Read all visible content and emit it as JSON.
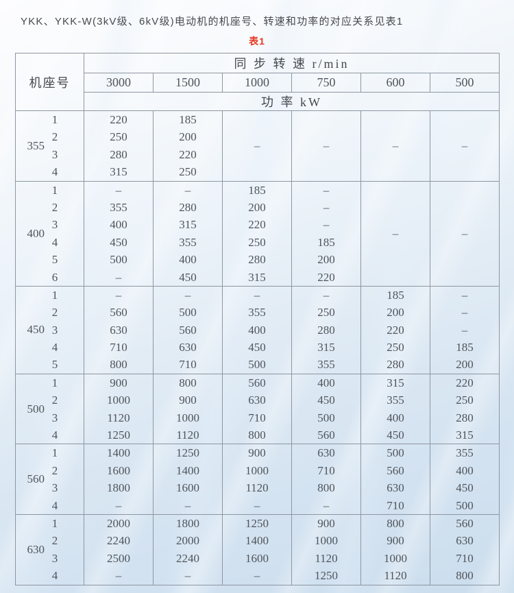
{
  "page": {
    "title": "YKK、YKK-W(3kV级、6kV级)电动机的机座号、转速和功率的对应关系见表1",
    "caption": "表1"
  },
  "colors": {
    "caption_red": "#e6371e",
    "border_gray": "#8d96a0",
    "background_blue": "#cbdded"
  },
  "table": {
    "frame_col_header": "机座号",
    "speed_title": "同 步 转 速 r/min",
    "power_title": "功  率 kW",
    "speeds": [
      "3000",
      "1500",
      "1000",
      "750",
      "600",
      "500"
    ],
    "dash": "–",
    "blocks": [
      {
        "frame": "355",
        "subs": [
          "1",
          "2",
          "3",
          "4"
        ],
        "columns": [
          {
            "type": "rows",
            "values": [
              "220",
              "250",
              "280",
              "315"
            ]
          },
          {
            "type": "rows",
            "values": [
              "185",
              "200",
              "220",
              "250"
            ]
          },
          {
            "type": "merged",
            "value": "–"
          },
          {
            "type": "merged",
            "value": "–"
          },
          {
            "type": "merged",
            "value": "–"
          },
          {
            "type": "merged",
            "value": "–"
          }
        ]
      },
      {
        "frame": "400",
        "subs": [
          "1",
          "2",
          "3",
          "4",
          "5",
          "6"
        ],
        "columns": [
          {
            "type": "rows",
            "values": [
              "–",
              "355",
              "400",
              "450",
              "500",
              "–"
            ]
          },
          {
            "type": "rows",
            "values": [
              "–",
              "280",
              "315",
              "355",
              "400",
              "450"
            ]
          },
          {
            "type": "rows",
            "values": [
              "185",
              "200",
              "220",
              "250",
              "280",
              "315"
            ]
          },
          {
            "type": "rows",
            "values": [
              "–",
              "–",
              "–",
              "185",
              "200",
              "220"
            ]
          },
          {
            "type": "merged",
            "value": "–"
          },
          {
            "type": "merged",
            "value": "–"
          }
        ]
      },
      {
        "frame": "450",
        "subs": [
          "1",
          "2",
          "3",
          "4",
          "5"
        ],
        "columns": [
          {
            "type": "rows",
            "values": [
              "–",
              "560",
              "630",
              "710",
              "800"
            ]
          },
          {
            "type": "rows",
            "values": [
              "–",
              "500",
              "560",
              "630",
              "710"
            ]
          },
          {
            "type": "rows",
            "values": [
              "–",
              "355",
              "400",
              "450",
              "500"
            ]
          },
          {
            "type": "rows",
            "values": [
              "–",
              "250",
              "280",
              "315",
              "355"
            ]
          },
          {
            "type": "rows",
            "values": [
              "185",
              "200",
              "220",
              "250",
              "280"
            ]
          },
          {
            "type": "rows",
            "values": [
              "–",
              "–",
              "–",
              "185",
              "200"
            ]
          }
        ]
      },
      {
        "frame": "500",
        "subs": [
          "1",
          "2",
          "3",
          "4"
        ],
        "columns": [
          {
            "type": "rows",
            "values": [
              "900",
              "1000",
              "1120",
              "1250"
            ]
          },
          {
            "type": "rows",
            "values": [
              "800",
              "900",
              "1000",
              "1120"
            ]
          },
          {
            "type": "rows",
            "values": [
              "560",
              "630",
              "710",
              "800"
            ]
          },
          {
            "type": "rows",
            "values": [
              "400",
              "450",
              "500",
              "560"
            ]
          },
          {
            "type": "rows",
            "values": [
              "315",
              "355",
              "400",
              "450"
            ]
          },
          {
            "type": "rows",
            "values": [
              "220",
              "250",
              "280",
              "315"
            ]
          }
        ]
      },
      {
        "frame": "560",
        "subs": [
          "1",
          "2",
          "3",
          "4"
        ],
        "columns": [
          {
            "type": "rows",
            "values": [
              "1400",
              "1600",
              "1800",
              "–"
            ]
          },
          {
            "type": "rows",
            "values": [
              "1250",
              "1400",
              "1600",
              "–"
            ]
          },
          {
            "type": "rows",
            "values": [
              "900",
              "1000",
              "1120",
              "–"
            ]
          },
          {
            "type": "rows",
            "values": [
              "630",
              "710",
              "800",
              "–"
            ]
          },
          {
            "type": "rows",
            "values": [
              "500",
              "560",
              "630",
              "710"
            ]
          },
          {
            "type": "rows",
            "values": [
              "355",
              "400",
              "450",
              "500"
            ]
          }
        ]
      },
      {
        "frame": "630",
        "subs": [
          "1",
          "2",
          "3",
          "4"
        ],
        "columns": [
          {
            "type": "rows",
            "values": [
              "2000",
              "2240",
              "2500",
              "–"
            ]
          },
          {
            "type": "rows",
            "values": [
              "1800",
              "2000",
              "2240",
              "–"
            ]
          },
          {
            "type": "rows",
            "values": [
              "1250",
              "1400",
              "1600",
              "–"
            ]
          },
          {
            "type": "rows",
            "values": [
              "900",
              "1000",
              "1120",
              "1250"
            ]
          },
          {
            "type": "rows",
            "values": [
              "800",
              "900",
              "1000",
              "1120"
            ]
          },
          {
            "type": "rows",
            "values": [
              "560",
              "630",
              "710",
              "800"
            ]
          }
        ]
      }
    ]
  }
}
